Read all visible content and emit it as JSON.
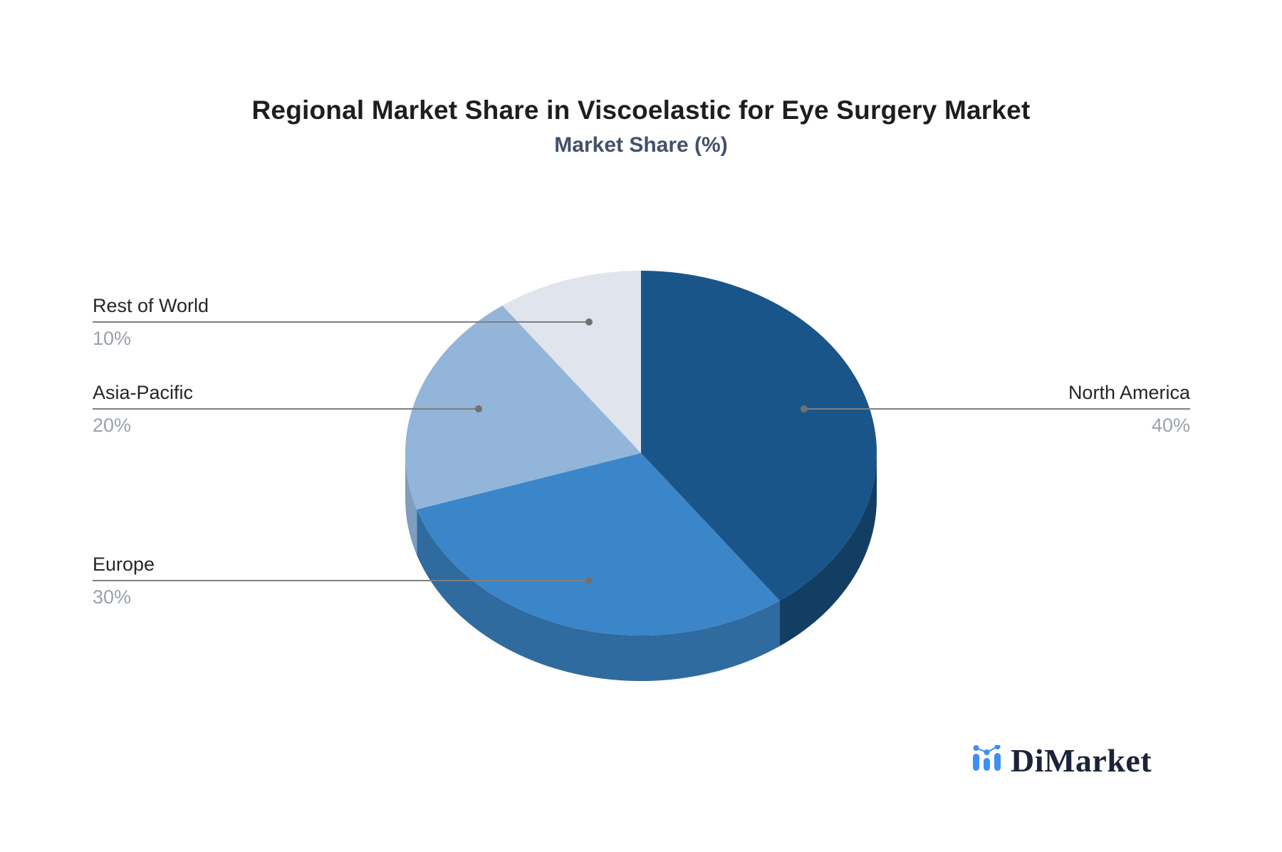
{
  "header": {
    "title": "Regional Market Share in Viscoelastic for Eye Surgery Market",
    "subtitle": "Market Share (%)"
  },
  "chart_data": {
    "type": "pie",
    "effect": "3d",
    "title": "Regional Market Share in Viscoelastic for Eye Surgery Market",
    "subtitle": "Market Share (%)",
    "unit": "%",
    "start_angle_deg": 0,
    "direction": "clockwise",
    "legend_position": "callout-labels",
    "slices": [
      {
        "label": "North America",
        "value": 40,
        "pct_label": "40%",
        "color": "#1a5589",
        "side_color": "#133e63"
      },
      {
        "label": "Europe",
        "value": 30,
        "pct_label": "30%",
        "color": "#3b86c8",
        "side_color": "#2f6b9f"
      },
      {
        "label": "Asia-Pacific",
        "value": 20,
        "pct_label": "20%",
        "color": "#92b5d9",
        "side_color": "#7f9dbd"
      },
      {
        "label": "Rest of World",
        "value": 10,
        "pct_label": "10%",
        "color": "#dfe4ed",
        "side_color": "#b9c2d0"
      }
    ],
    "callout_line_color": "#7f7f7f",
    "callout_dot_color": "#717171",
    "label_color": "#262626",
    "pct_color": "#9aa1a9"
  },
  "branding": {
    "name": "DiMarket",
    "icon": "bar-line-chart-logo-icon",
    "icon_color": "#3f8ef3",
    "text_color": "#1a2339"
  }
}
